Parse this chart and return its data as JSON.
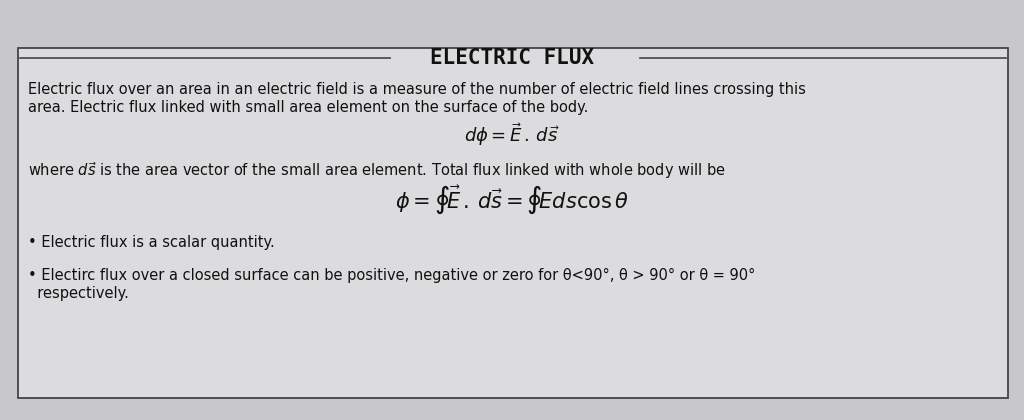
{
  "title": "ELECTRIC FLUX",
  "bg_color": "#c8c8cc",
  "box_bg": "#dcdcde",
  "text_color": "#111111",
  "border_color": "#444444",
  "para1_line1": "Electric flux over an area in an electric field is a measure of the number of electric field lines crossing this",
  "para1_line2": "area. Electric flux linked with small area element on the surface of the body.",
  "formula1": "$d\\phi = \\vec{E}\\, .\\, d\\vec{s}$",
  "para2": "where $d\\vec{s}$ is the area vector of the small area element. Total flux linked with whole body will be",
  "formula2": "$\\phi = \\oint\\!\\vec{E}\\, .\\, d\\vec{s} = \\oint\\!Eds\\cos\\theta$",
  "bullet1": "• Electric flux is a scalar quantity.",
  "bullet2_line1": "• Electirc flux over a closed surface can be positive, negative or zero for θ<90°, θ > 90° or θ = 90°",
  "bullet2_line2": "  respectively.",
  "title_fontsize": 15,
  "body_fontsize": 10.5,
  "formula_fontsize": 12
}
